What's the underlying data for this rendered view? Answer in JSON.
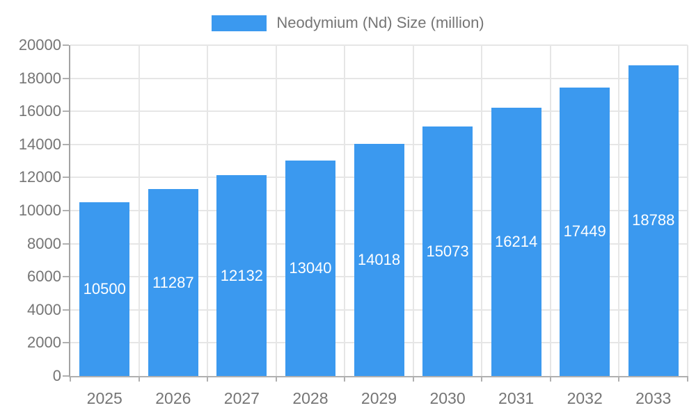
{
  "chart_data": {
    "type": "bar",
    "title": "",
    "legend": {
      "label": "Neodymium (Nd) Size (million)",
      "position": "top-center"
    },
    "categories": [
      "2025",
      "2026",
      "2027",
      "2028",
      "2029",
      "2030",
      "2031",
      "2032",
      "2033"
    ],
    "series": [
      {
        "name": "Neodymium (Nd) Size (million)",
        "values": [
          10500,
          11287,
          12132,
          13040,
          14018,
          15073,
          16214,
          17449,
          18788
        ]
      }
    ],
    "value_labels_shown": true,
    "xlabel": "",
    "ylabel": "",
    "ylim": [
      0,
      20000
    ],
    "ytick_step": 2000,
    "yticks": [
      0,
      2000,
      4000,
      6000,
      8000,
      10000,
      12000,
      14000,
      16000,
      18000,
      20000
    ],
    "grid": "horizontal-and-vertical",
    "colors": {
      "bar": "#3b99ef",
      "grid": "#e6e6e6",
      "axis": "#b0b0b0",
      "axis_text": "#757575",
      "value_label_text": "#ffffff",
      "background": "#ffffff"
    }
  }
}
